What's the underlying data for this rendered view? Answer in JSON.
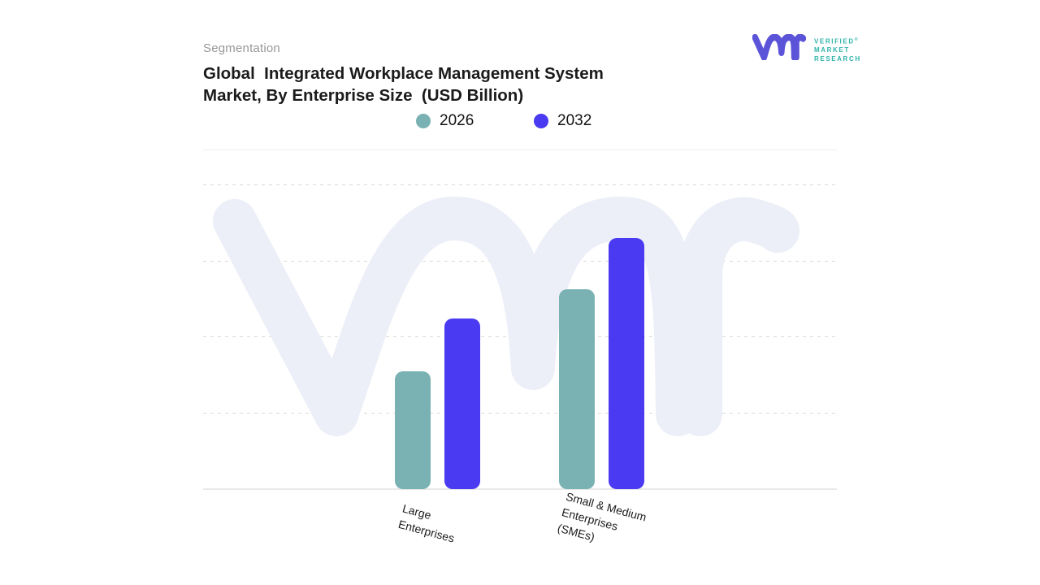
{
  "header": {
    "eyebrow": "Segmentation",
    "title_line1": "Global  Integrated Workplace Management System",
    "title_line2": "Market, By Enterprise Size  (USD Billion)"
  },
  "logo": {
    "glyph": "vmr-monogram",
    "word1": "VERIFIED",
    "registered_mark": "®",
    "word2": "MARKET",
    "word3": "RESEARCH",
    "glyph_color": "#5b53d8",
    "text_color": "#2fb3a9"
  },
  "legend": [
    {
      "label": "2026",
      "color": "#7ab2b4"
    },
    {
      "label": "2032",
      "color": "#4a3af2"
    }
  ],
  "chart_data": {
    "type": "bar",
    "title": "Global Integrated Workplace Management System Market, By Enterprise Size (USD Billion)",
    "categories": [
      "Large Enterprises",
      "Small & Medium Enterprises (SMEs)"
    ],
    "category_label_lines": [
      [
        "Large",
        "Enterprises"
      ],
      [
        "Small & Medium",
        "Enterprises",
        "(SMEs)"
      ]
    ],
    "series": [
      {
        "name": "2026",
        "color": "#7ab2b4",
        "values": [
          1.54,
          2.62
        ]
      },
      {
        "name": "2032",
        "color": "#4a3af2",
        "values": [
          2.23,
          3.29
        ]
      }
    ],
    "xlabel": "",
    "ylabel": "",
    "ylim": [
      0,
      4
    ],
    "y_tick_labels_visible": false,
    "units_note": "values estimated in gridline units; no numeric axis labels shown",
    "grid": "horizontal dashed lines",
    "legend_position": "top-center",
    "watermark": "vmr monogram, light lavender #edeff8"
  }
}
